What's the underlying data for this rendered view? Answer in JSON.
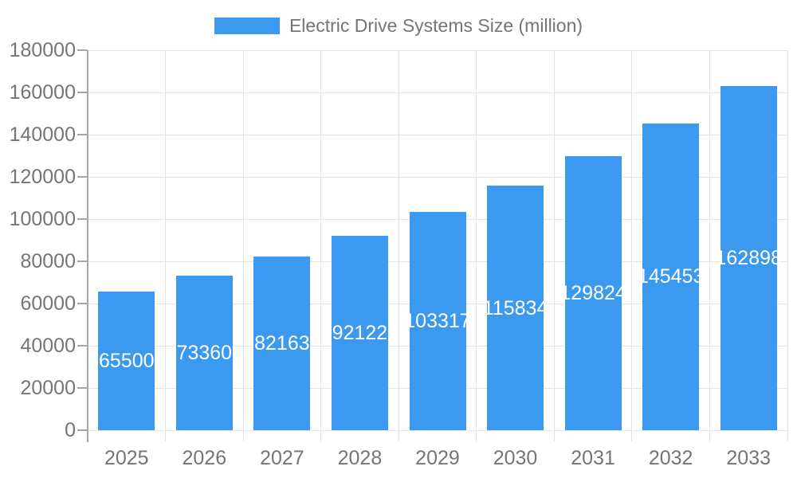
{
  "legend": {
    "label": "Electric Drive Systems Size (million)"
  },
  "chart_data": {
    "type": "bar",
    "title": "",
    "xlabel": "",
    "ylabel": "",
    "categories": [
      "2025",
      "2026",
      "2027",
      "2028",
      "2029",
      "2030",
      "2031",
      "2032",
      "2033"
    ],
    "series": [
      {
        "name": "Electric Drive Systems Size (million)",
        "values": [
          65500,
          73360,
          82163,
          92122,
          103317,
          115834,
          129824,
          145453,
          162898
        ]
      }
    ],
    "bar_value_labels_visible": true,
    "ylim": [
      0,
      180000
    ],
    "ytick_step": 20000,
    "yticks": [
      "0",
      "20000",
      "40000",
      "60000",
      "80000",
      "100000",
      "120000",
      "140000",
      "160000",
      "180000"
    ],
    "grid": true,
    "legend_position": "top-center",
    "colors": {
      "bar": "#3C99F0",
      "grid_line": "#E4E4E4",
      "axis_line": "#A6A6A6",
      "tick_text": "#757575",
      "bar_label_text": "#FFFFFF",
      "background": "#FFFFFF"
    }
  }
}
